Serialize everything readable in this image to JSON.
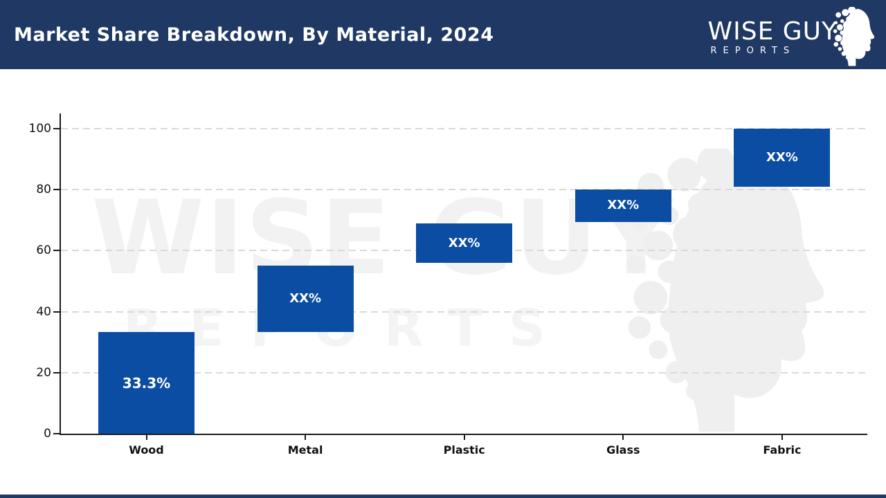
{
  "header": {
    "title": "Market Share Breakdown, By Material, 2024",
    "logo": {
      "line1": "WISE GUY",
      "line2": "REPORTS"
    }
  },
  "watermark": {
    "line1": "WISE GUY",
    "line2": "REPORTS"
  },
  "colors": {
    "header_bg": "#1f3864",
    "bar": "#0b4da2",
    "bar_label": "#ffffff",
    "gridline": "#d9d9d9",
    "axis": "#1a1a1a",
    "watermark": "#f2f2f2"
  },
  "chart_data": {
    "type": "bar",
    "subtype": "waterfall",
    "title": "Market Share Breakdown, By Material, 2024",
    "xlabel": "",
    "ylabel": "",
    "categories": [
      "Wood",
      "Metal",
      "Plastic",
      "Glass",
      "Fabric"
    ],
    "segments": [
      {
        "category": "Wood",
        "start": 0,
        "end": 33.3,
        "label": "33.3%"
      },
      {
        "category": "Metal",
        "start": 33.3,
        "end": 55.2,
        "label": "XX%"
      },
      {
        "category": "Plastic",
        "start": 55.9,
        "end": 68.9,
        "label": "XX%"
      },
      {
        "category": "Glass",
        "start": 69.4,
        "end": 80.1,
        "label": "XX%"
      },
      {
        "category": "Fabric",
        "start": 80.9,
        "end": 100,
        "label": "XX%"
      }
    ],
    "ylim": [
      0,
      105
    ],
    "yticks": [
      0,
      20,
      40,
      60,
      80,
      100
    ],
    "grid": "horizontal dashed",
    "legend": "none",
    "bar_color": "#0b4da2",
    "value_label_position": "center"
  }
}
